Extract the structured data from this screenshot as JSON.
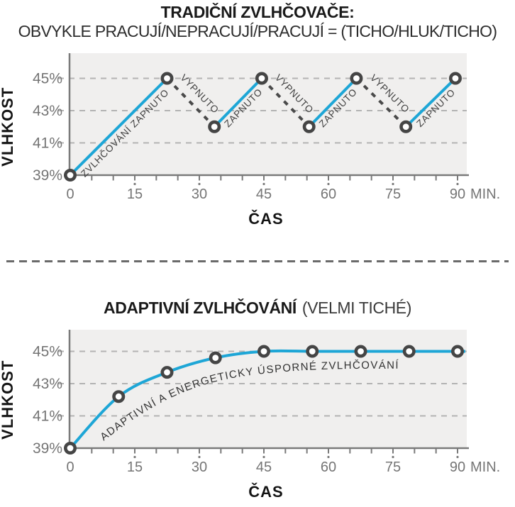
{
  "colors": {
    "line_on": "#1ea6d6",
    "line_off": "#4a4a4a",
    "marker_stroke": "#454545",
    "marker_fill": "#ffffff",
    "plot_bg": "#f0efee",
    "grid": "#b3b3b3",
    "axis": "#7a7a7a",
    "tick_label": "#757575",
    "divider": "#6a6a6a"
  },
  "chart_data": [
    {
      "type": "line",
      "title": "TRADIČNÍ ZVLHČOVAČE:",
      "subtitle": "OBVYKLE PRACUJÍ/NEPRACUJÍ/PRACUJÍ = (TICHO/HLUK/TICHO)",
      "xlabel": "ČAS",
      "ylabel": "VLHKOST",
      "x_unit_label": "MIN.",
      "xlim": [
        0,
        90
      ],
      "ylim": [
        39,
        45
      ],
      "x_minor_tick_step": 5,
      "x_ticks": [
        {
          "v": 0,
          "label": "0"
        },
        {
          "v": 15,
          "label": "15"
        },
        {
          "v": 30,
          "label": "30"
        },
        {
          "v": 45,
          "label": "45"
        },
        {
          "v": 60,
          "label": "60"
        },
        {
          "v": 75,
          "label": "75"
        },
        {
          "v": 90,
          "label": "90"
        }
      ],
      "y_ticks": [
        {
          "v": 39,
          "label": "39%"
        },
        {
          "v": 41,
          "label": "41%"
        },
        {
          "v": 43,
          "label": "43%"
        },
        {
          "v": 45,
          "label": "45%"
        }
      ],
      "y_gridlines": [
        41,
        43,
        45
      ],
      "points": [
        {
          "t": 0,
          "humidity": 39
        },
        {
          "t": 22.5,
          "humidity": 45
        },
        {
          "t": 33.5,
          "humidity": 42
        },
        {
          "t": 44.5,
          "humidity": 45
        },
        {
          "t": 55.5,
          "humidity": 42
        },
        {
          "t": 66.5,
          "humidity": 45
        },
        {
          "t": 78,
          "humidity": 42
        },
        {
          "t": 89.5,
          "humidity": 45
        }
      ],
      "segments": [
        {
          "state": "on",
          "style": "solid",
          "label": "ZVLHČOVÁNÍ ZAPNUTO"
        },
        {
          "state": "off",
          "style": "dashed",
          "label": "VYPNUTO"
        },
        {
          "state": "on",
          "style": "solid",
          "label": "ZAPNUTO"
        },
        {
          "state": "off",
          "style": "dashed",
          "label": "VYPNUTO"
        },
        {
          "state": "on",
          "style": "solid",
          "label": "ZAPNUTO"
        },
        {
          "state": "off",
          "style": "dashed",
          "label": "VYPNUTO"
        },
        {
          "state": "on",
          "style": "solid",
          "label": "ZAPNUTO"
        }
      ]
    },
    {
      "type": "line",
      "title": "ADAPTIVNÍ ZVLHČOVÁNÍ",
      "title_note": "(VELMI TICHÉ)",
      "xlabel": "ČAS",
      "ylabel": "VLHKOST",
      "x_unit_label": "MIN.",
      "xlim": [
        0,
        90
      ],
      "ylim": [
        39,
        45
      ],
      "x_minor_tick_step": 5,
      "x_ticks": [
        {
          "v": 0,
          "label": "0"
        },
        {
          "v": 15,
          "label": "15"
        },
        {
          "v": 30,
          "label": "30"
        },
        {
          "v": 45,
          "label": "45"
        },
        {
          "v": 60,
          "label": "60"
        },
        {
          "v": 75,
          "label": "75"
        },
        {
          "v": 90,
          "label": "90"
        }
      ],
      "y_ticks": [
        {
          "v": 39,
          "label": "39%"
        },
        {
          "v": 41,
          "label": "41%"
        },
        {
          "v": 43,
          "label": "43%"
        },
        {
          "v": 45,
          "label": "45%"
        }
      ],
      "y_gridlines": [
        41,
        43,
        45
      ],
      "curve_label": "ADAPTIVNÍ A ENERGETICKY ÚSPORNÉ ZVLHČOVÁNÍ",
      "points": [
        {
          "t": 0,
          "humidity": 39
        },
        {
          "t": 11.25,
          "humidity": 42.2
        },
        {
          "t": 22.5,
          "humidity": 43.7
        },
        {
          "t": 33.75,
          "humidity": 44.6
        },
        {
          "t": 45,
          "humidity": 45
        },
        {
          "t": 56.25,
          "humidity": 45
        },
        {
          "t": 67.5,
          "humidity": 45
        },
        {
          "t": 78.75,
          "humidity": 45
        },
        {
          "t": 90,
          "humidity": 45
        }
      ]
    }
  ]
}
